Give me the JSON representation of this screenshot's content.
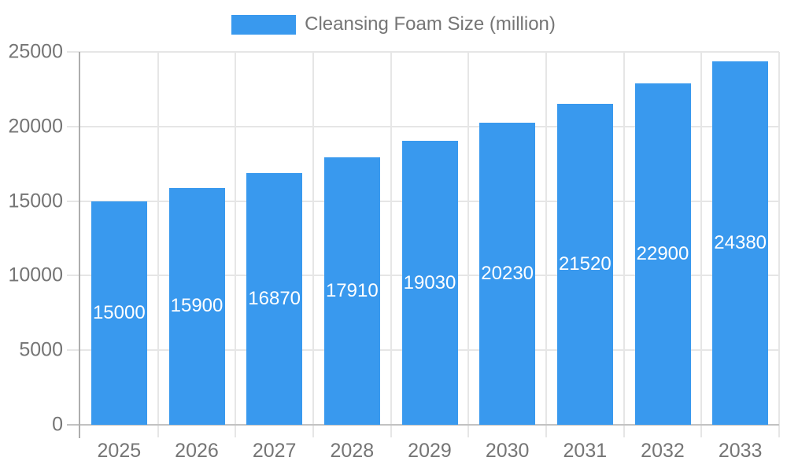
{
  "legend": {
    "label": "Cleansing Foam Size (million)"
  },
  "colors": {
    "bar": "#3999EE",
    "bar_label_text": "#ffffff",
    "tick_text": "#757575",
    "legend_text": "#757575",
    "gridline": "#e6e6e6",
    "zero_line": "#c2c2c2",
    "axis_line": "#adadad",
    "background": "#ffffff"
  },
  "chart_data": {
    "type": "bar",
    "title": "",
    "categories": [
      "2025",
      "2026",
      "2027",
      "2028",
      "2029",
      "2030",
      "2031",
      "2032",
      "2033"
    ],
    "series": [
      {
        "name": "Cleansing Foam Size (million)",
        "values": [
          15000,
          15900,
          16870,
          17910,
          19030,
          20230,
          21520,
          22900,
          24380
        ]
      }
    ],
    "bar_value_labels": [
      "15000",
      "15900",
      "16870",
      "17910",
      "19030",
      "20230",
      "21520",
      "22900",
      "24380"
    ],
    "xlabel": "",
    "ylabel": "",
    "ylim": [
      0,
      25000
    ],
    "yticks": [
      0,
      5000,
      10000,
      15000,
      20000,
      25000
    ],
    "ytick_labels": [
      "0",
      "5000",
      "10000",
      "15000",
      "20000",
      "25000"
    ],
    "grid": true,
    "legend_position": "top-center",
    "value_labels_inside_bars": true
  }
}
